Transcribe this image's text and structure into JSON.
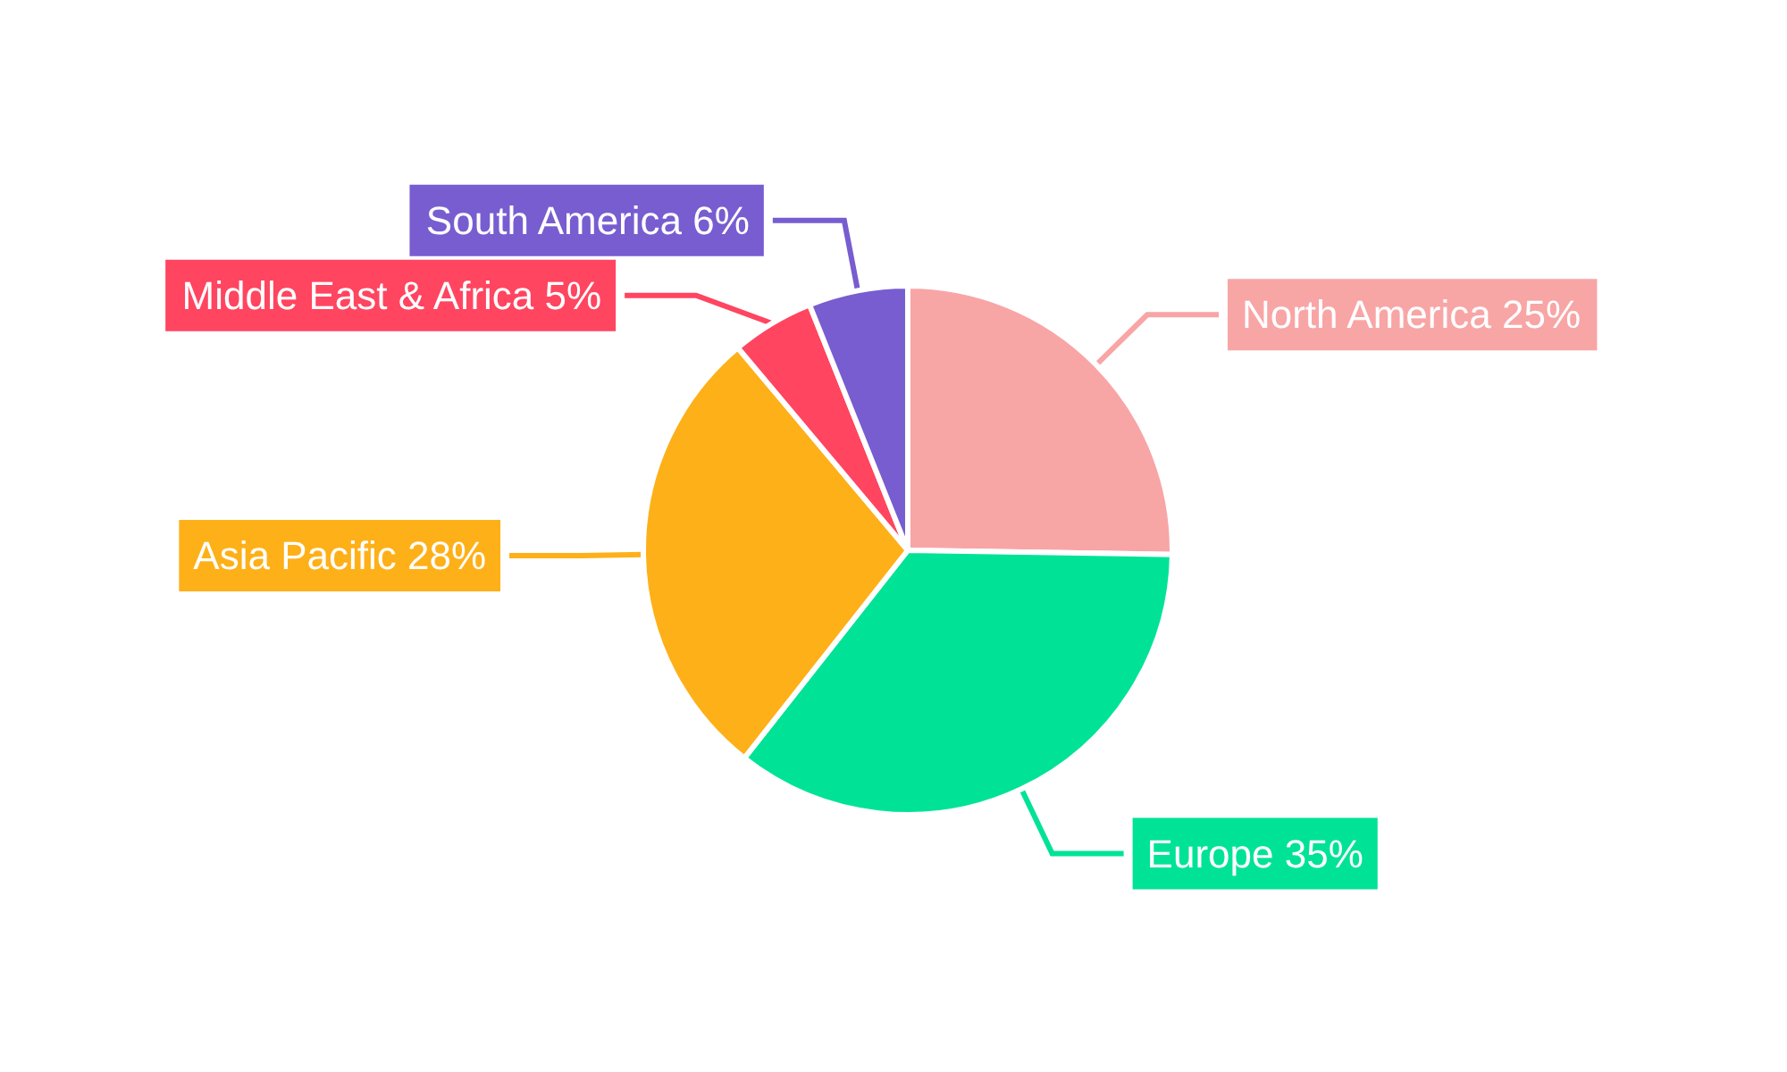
{
  "chart_data": {
    "type": "pie",
    "categories": [
      "North America",
      "Europe",
      "Asia Pacific",
      "Middle East & Africa",
      "South America"
    ],
    "values": [
      25,
      35,
      28,
      5,
      6
    ],
    "value_labels": [
      "25%",
      "35%",
      "28%",
      "5%",
      "6%"
    ],
    "colors": [
      "#f8a5a6",
      "#00e396",
      "#feb019",
      "#ff4560",
      "#775dd0"
    ],
    "legend": false
  }
}
